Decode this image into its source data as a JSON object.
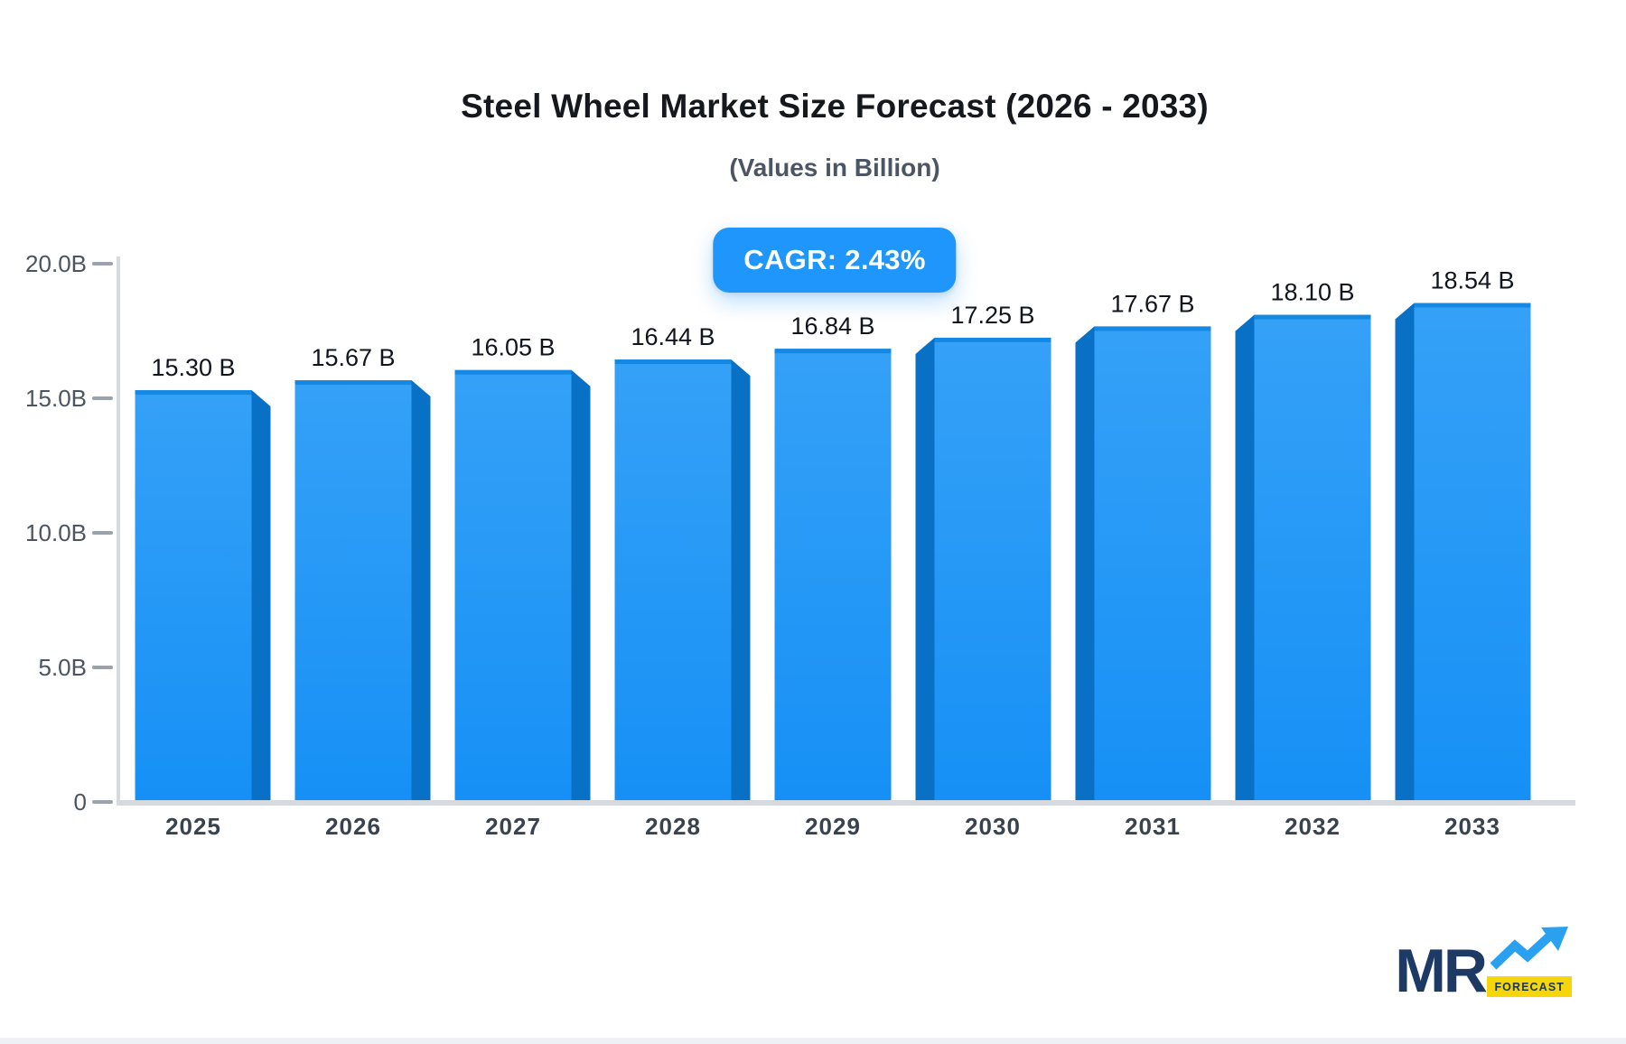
{
  "header": {
    "title": "Steel Wheel Market Size Forecast (2026 - 2033)",
    "subtitle": "(Values in Billion)"
  },
  "badge": {
    "label": "CAGR: 2.43%",
    "background": "#1e96fb",
    "text_color": "#ffffff"
  },
  "chart_data": {
    "type": "bar",
    "title": "Steel Wheel Market Size Forecast (2026 - 2033)",
    "subtitle": "(Values in Billion)",
    "annotation": "CAGR: 2.43%",
    "categories": [
      "2025",
      "2026",
      "2027",
      "2028",
      "2029",
      "2030",
      "2031",
      "2032",
      "2033"
    ],
    "values": [
      15.3,
      15.67,
      16.05,
      16.44,
      16.84,
      17.25,
      17.67,
      18.1,
      18.54
    ],
    "value_labels": [
      "15.30 B",
      "15.67 B",
      "16.05 B",
      "16.44 B",
      "16.84 B",
      "17.25 B",
      "17.67 B",
      "18.10 B",
      "18.54 B"
    ],
    "xlabel": "",
    "ylabel": "",
    "ylim": [
      0,
      20
    ],
    "yticks": [
      {
        "value": 0,
        "label": "0"
      },
      {
        "value": 5,
        "label": "5.0B"
      },
      {
        "value": 10,
        "label": "10.0B"
      },
      {
        "value": 15,
        "label": "15.0B"
      },
      {
        "value": 20,
        "label": "20.0B"
      }
    ],
    "grid": false,
    "legend": false,
    "colors": {
      "face_top": "#35a1f7",
      "face_bottom": "#1690f6",
      "side": "#0871c6",
      "top_edge": "#1285e0",
      "axis": "#d6dade",
      "tick": "#9aa2ad"
    }
  },
  "logo": {
    "mr_text": "MR",
    "forecast_text": "FORECAST",
    "navy": "#1c3a64",
    "blue": "#2aa0f0",
    "yellow": "#f6d60a"
  }
}
